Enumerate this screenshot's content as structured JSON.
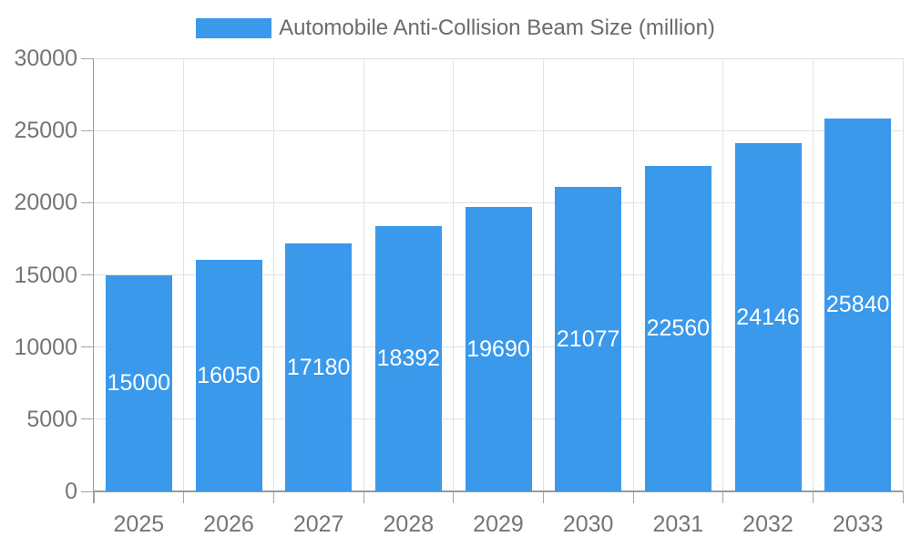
{
  "legend": {
    "label": "Automobile Anti-Collision Beam Size (million)"
  },
  "chart_data": {
    "type": "bar",
    "title": "Automobile Anti-Collision Beam Size (million)",
    "categories": [
      "2025",
      "2026",
      "2027",
      "2028",
      "2029",
      "2030",
      "2031",
      "2032",
      "2033"
    ],
    "values": [
      15000,
      16050,
      17180,
      18392,
      19690,
      21077,
      22560,
      24146,
      25840
    ],
    "xlabel": "",
    "ylabel": "",
    "ylim": [
      0,
      30000
    ],
    "ytick_step": 5000,
    "ytick_labels": [
      "0",
      "5000",
      "10000",
      "15000",
      "20000",
      "25000",
      "30000"
    ],
    "grid": true,
    "legend_position": "top-center",
    "value_label_position": "inside-center"
  },
  "colors": {
    "bar": "#3B99EC",
    "grid": "#E2E2E2",
    "axis": "#9A9A9A",
    "tick": "#A6A6A6",
    "axis_label_text": "#757575",
    "value_label_text": "#FFFFFF",
    "legend_text": "#6B6B6B",
    "background": "#FFFFFF"
  }
}
